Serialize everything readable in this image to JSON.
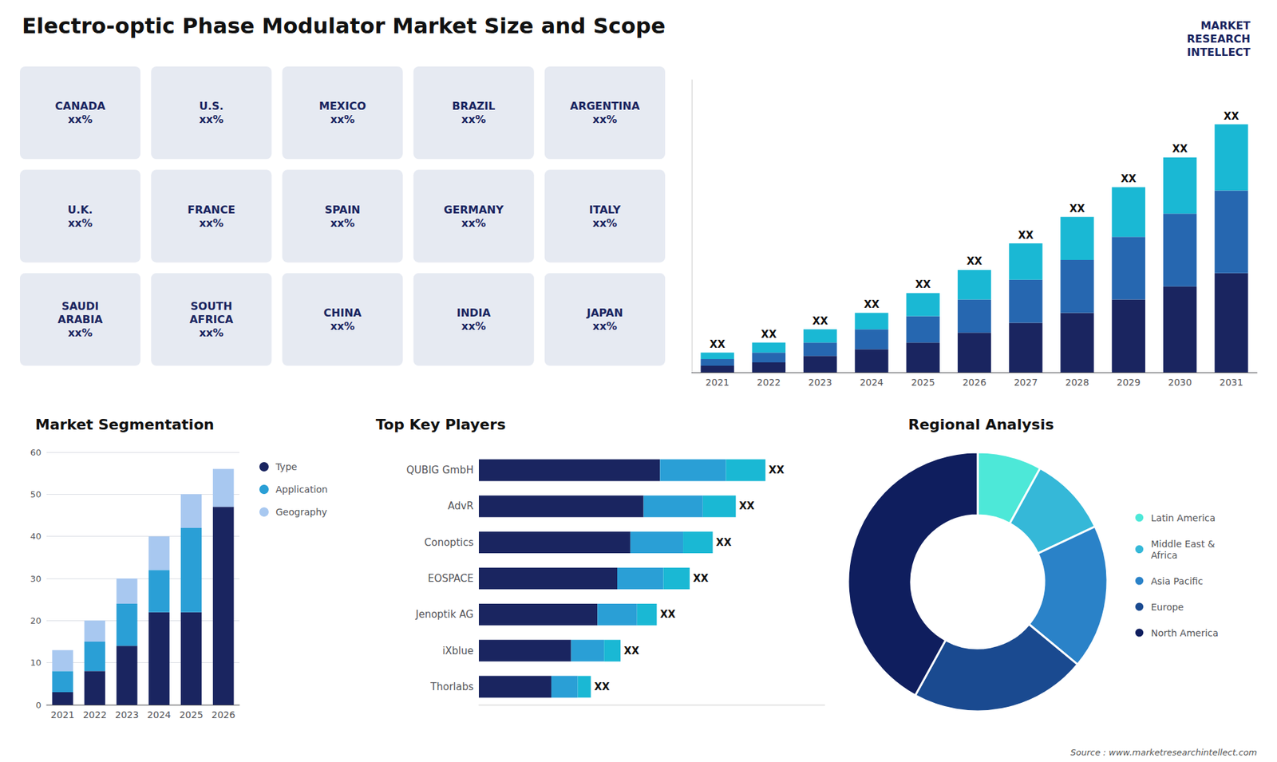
{
  "title": "Electro-optic Phase Modulator Market Size and Scope",
  "annotations": [
    "MARKET\nRESEARCH\nINTELLECT",
    "Source : www.marketresearchintellect.com"
  ],
  "chart_data": [
    {
      "type": "map",
      "annotations": [
        "CANADA\nxx%",
        "U.S.\nxx%",
        "MEXICO\nxx%",
        "BRAZIL\nxx%",
        "ARGENTINA\nxx%",
        "U.K.\nxx%",
        "FRANCE\nxx%",
        "SPAIN\nxx%",
        "GERMANY\nxx%",
        "ITALY\nxx%",
        "SAUDI\nARABIA\nxx%",
        "SOUTH\nAFRICA\nxx%",
        "CHINA\nxx%",
        "INDIA\nxx%",
        "JAPAN\nxx%"
      ]
    },
    {
      "type": "bar",
      "stacked": true,
      "categories": [
        "2021",
        "2022",
        "2023",
        "2024",
        "2025",
        "2026",
        "2027",
        "2028",
        "2029",
        "2030",
        "2031"
      ],
      "series": [
        {
          "color": "#1a2560",
          "values": [
            2,
            3,
            5,
            7,
            9,
            12,
            15,
            18,
            22,
            26,
            30
          ]
        },
        {
          "color": "#2667b0",
          "values": [
            2,
            3,
            4,
            6,
            8,
            10,
            13,
            16,
            19,
            22,
            25
          ]
        },
        {
          "color": "#1ab8d4",
          "values": [
            2,
            3,
            4,
            5,
            7,
            9,
            11,
            13,
            15,
            17,
            20
          ],
          "value_labels": [
            "XX",
            "XX",
            "XX",
            "XX",
            "XX",
            "XX",
            "XX",
            "XX",
            "XX",
            "XX",
            "XX"
          ]
        }
      ],
      "ylim": [
        0,
        88.5
      ],
      "tick_labels": "x",
      "grid": false
    },
    {
      "type": "bar",
      "title": "Market Segmentation",
      "stacked": true,
      "categories": [
        "2021",
        "2022",
        "2023",
        "2024",
        "2025",
        "2026"
      ],
      "series": [
        {
          "name": "Type",
          "color": "#1a2560",
          "values": [
            3,
            8,
            14,
            22,
            22,
            47
          ]
        },
        {
          "name": "Application",
          "color": "#2a9fd6",
          "values": [
            5,
            7,
            10,
            10,
            20,
            0
          ]
        },
        {
          "name": "Geography",
          "color": "#a8c8f0",
          "values": [
            5,
            5,
            6,
            8,
            8,
            9
          ]
        }
      ],
      "ylim": [
        0,
        60
      ],
      "yticks": [
        0,
        10,
        20,
        30,
        40,
        50,
        60
      ],
      "grid": true,
      "legend": "right"
    },
    {
      "type": "bar",
      "title": "Top Key Players",
      "orientation": "horizontal",
      "stacked": true,
      "categories": [
        "QUBIG GmbH",
        "AdvR",
        "Conoptics",
        "EOSPACE",
        "Jenoptik AG",
        "iXblue",
        "Thorlabs"
      ],
      "series": [
        {
          "color": "#1a2560",
          "values": [
            0.55,
            0.5,
            0.46,
            0.42,
            0.36,
            0.28,
            0.22
          ]
        },
        {
          "color": "#2a9fd6",
          "values": [
            0.2,
            0.18,
            0.16,
            0.14,
            0.12,
            0.1,
            0.08
          ]
        },
        {
          "color": "#1ab8d4",
          "values": [
            0.12,
            0.1,
            0.09,
            0.08,
            0.06,
            0.05,
            0.04
          ],
          "value_labels": [
            "XX",
            "XX",
            "XX",
            "XX",
            "XX",
            "XX",
            "XX"
          ]
        }
      ],
      "xlim": [
        0,
        1.05
      ],
      "tick_labels": "y",
      "grid": false
    },
    {
      "type": "pie",
      "title": "Regional Analysis",
      "categories": [
        "Latin America",
        "Middle East &\nAfrica",
        "Asia Pacific",
        "Europe",
        "North America"
      ],
      "values": [
        8,
        10,
        18,
        22,
        42
      ],
      "colors": [
        "#4de8d8",
        "#35b8d8",
        "#2a82c8",
        "#1a4a90",
        "#0f1e5e"
      ],
      "legend": "right"
    }
  ]
}
